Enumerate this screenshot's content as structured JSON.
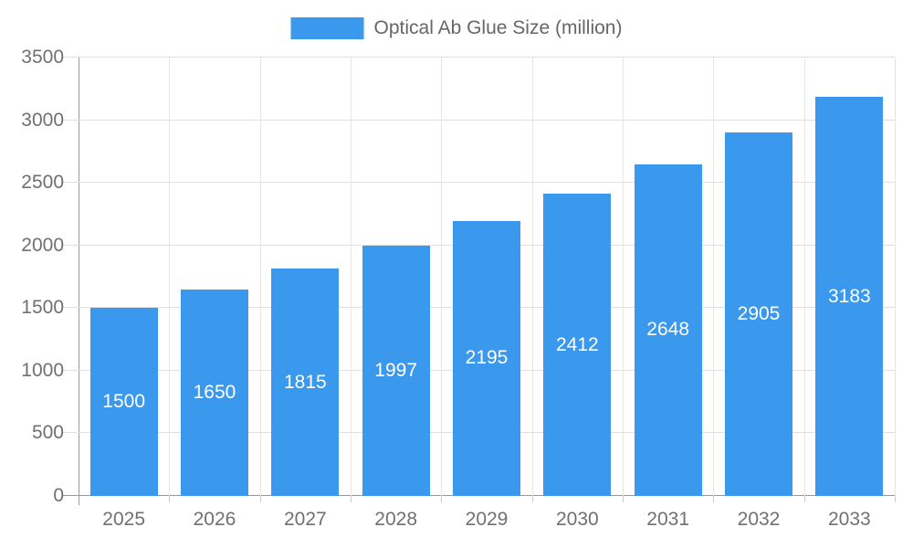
{
  "legend": {
    "label": "Optical Ab Glue Size (million)"
  },
  "chart_data": {
    "type": "bar",
    "title": "Optical Ab Glue Size (million)",
    "series_name": "Optical Ab Glue Size (million)",
    "categories": [
      "2025",
      "2026",
      "2027",
      "2028",
      "2029",
      "2030",
      "2031",
      "2032",
      "2033"
    ],
    "values": [
      1500,
      1650,
      1815,
      1997,
      2195,
      2412,
      2648,
      2905,
      3183
    ],
    "value_labels": [
      "1500",
      "1650",
      "1815",
      "1997",
      "2195",
      "2412",
      "2648",
      "2905",
      "3183"
    ],
    "xlabel": "",
    "ylabel": "",
    "ylim": [
      0,
      3500
    ],
    "yticks": [
      0,
      500,
      1000,
      1500,
      2000,
      2500,
      3000,
      3500
    ],
    "grid": true,
    "legend_position": "top-center",
    "bar_color": "#3A99EC",
    "value_label_color": "#ffffff"
  },
  "colors": {
    "bar": "#3A99EC",
    "grid_h": "#e0e0e0",
    "grid_v": "#e6e6e6",
    "axis": "#999999",
    "tick": "#cccccc",
    "axis_text": "#707070",
    "legend_text": "#666666",
    "background": "#ffffff"
  }
}
